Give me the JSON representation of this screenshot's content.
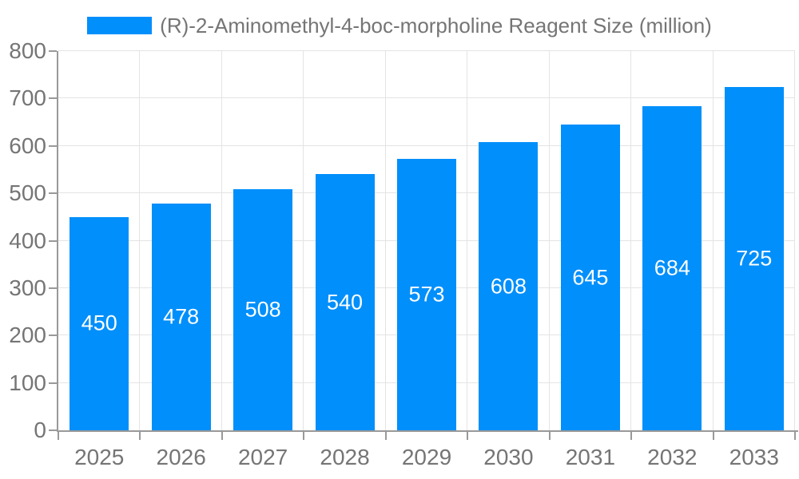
{
  "chart_data": {
    "type": "bar",
    "title": "(R)-2-Aminomethyl-4-boc-morpholine Reagent Size (million)",
    "categories": [
      "2025",
      "2026",
      "2027",
      "2028",
      "2029",
      "2030",
      "2031",
      "2032",
      "2033"
    ],
    "values": [
      450,
      478,
      508,
      540,
      573,
      608,
      645,
      684,
      725
    ],
    "xlabel": "",
    "ylabel": "",
    "ylim": [
      0,
      800
    ],
    "yticks": [
      0,
      100,
      200,
      300,
      400,
      500,
      600,
      700,
      800
    ],
    "grid": true,
    "legend_position": "top",
    "colors": {
      "bar": "#008ffb",
      "grid": "#e4e4e4",
      "axis": "#999999",
      "tick_label": "#757575",
      "title": "#757575",
      "value_label": "#ffffff",
      "background": "#ffffff"
    }
  }
}
